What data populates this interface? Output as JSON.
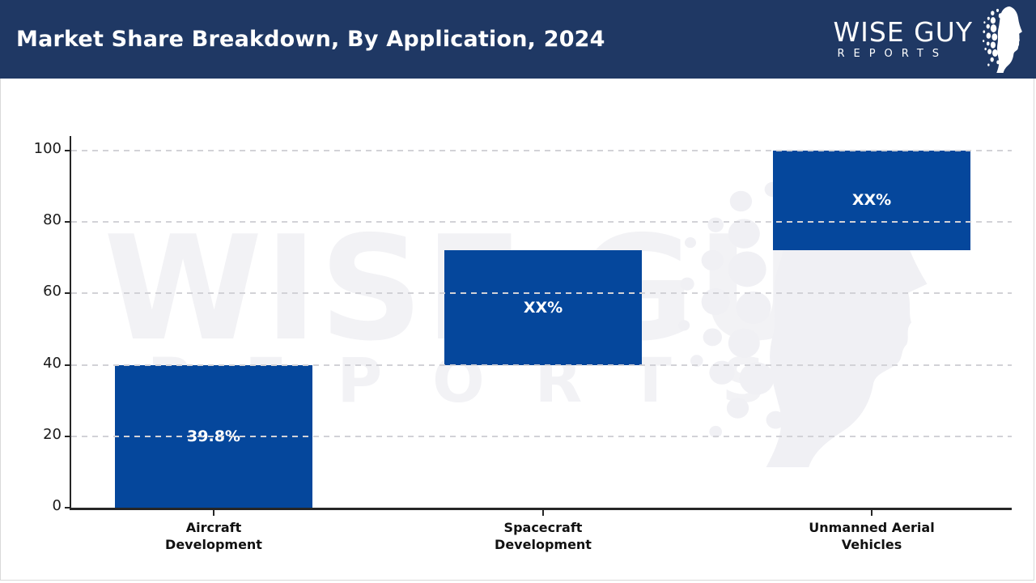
{
  "header": {
    "title": "Market Share Breakdown, By Application, 2024",
    "logo": {
      "line1": "WISE GUY",
      "line2": "REPORTS"
    }
  },
  "watermark": {
    "line1": "WISE GUY",
    "line2": "REPORTS"
  },
  "chart_data": {
    "type": "bar",
    "subtype": "floating-waterfall",
    "title": "Market Share Breakdown, By Application, 2024",
    "categories": [
      "Aircraft\nDevelopment",
      "Spacecraft\nDevelopment",
      "Unmanned Aerial\nVehicles"
    ],
    "bars": [
      {
        "category": "Aircraft Development",
        "start": 0,
        "end": 39.8,
        "label": "39.8%"
      },
      {
        "category": "Spacecraft Development",
        "start": 39.8,
        "end": 72.2,
        "label": "XX%"
      },
      {
        "category": "Unmanned Aerial Vehicles",
        "start": 72.2,
        "end": 100,
        "label": "XX%"
      }
    ],
    "yticks": [
      0,
      20,
      40,
      60,
      80,
      100
    ],
    "ylim": [
      0,
      100
    ],
    "xlabel": "",
    "ylabel": "",
    "grid": "horizontal-dashed",
    "legend": "none",
    "bar_color": "#05479c",
    "label_color": "#ffffff"
  },
  "colors": {
    "header_bg": "#1f3864",
    "axis": "#262626",
    "gridline": "#d2d2d7",
    "watermark": "#f2f2f5"
  }
}
